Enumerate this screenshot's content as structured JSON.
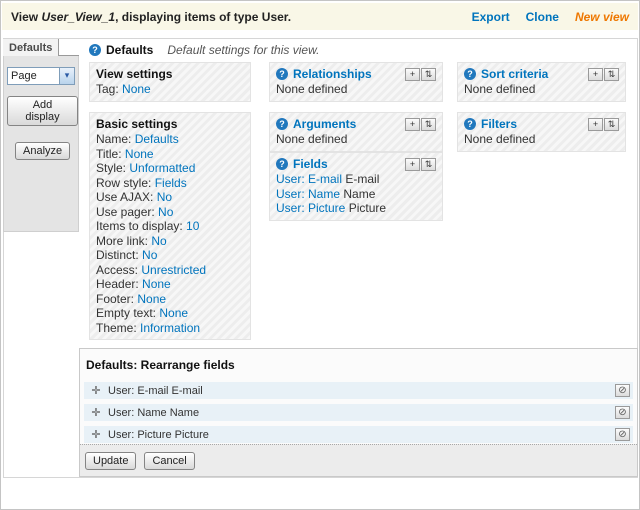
{
  "icons": {
    "help": "?",
    "add": "+",
    "rearrange": "⇅",
    "drag": "✛",
    "remove": "⊘",
    "select_arrow": "▾"
  },
  "header": {
    "title_prefix": "View ",
    "view_name": "User_View_1",
    "title_suffix": ", displaying items of type User.",
    "export": "Export",
    "clone": "Clone",
    "new_view": "New view"
  },
  "sidebar": {
    "tab": "Defaults",
    "display_type": "Page",
    "add_display_button": "Add display",
    "analyze_button": "Analyze"
  },
  "overview": {
    "title": "Defaults",
    "description": "Default settings for this view."
  },
  "view_settings": {
    "title": "View settings",
    "tag_label": "Tag:",
    "tag_value": "None"
  },
  "basic_settings": {
    "title": "Basic settings",
    "items": [
      {
        "label": "Name:",
        "value": "Defaults"
      },
      {
        "label": "Title:",
        "value": "None"
      },
      {
        "label": "Style:",
        "value": "Unformatted"
      },
      {
        "label": "Row style:",
        "value": "Fields"
      },
      {
        "label": "Use AJAX:",
        "value": "No"
      },
      {
        "label": "Use pager:",
        "value": "No"
      },
      {
        "label": "Items to display:",
        "value": "10"
      },
      {
        "label": "More link:",
        "value": "No"
      },
      {
        "label": "Distinct:",
        "value": "No"
      },
      {
        "label": "Access:",
        "value": "Unrestricted"
      },
      {
        "label": "Header:",
        "value": "None"
      },
      {
        "label": "Footer:",
        "value": "None"
      },
      {
        "label": "Empty text:",
        "value": "None"
      },
      {
        "label": "Theme:",
        "value": "Information"
      }
    ]
  },
  "relationships": {
    "title": "Relationships",
    "empty": "None defined"
  },
  "sort_criteria": {
    "title": "Sort criteria",
    "empty": "None defined"
  },
  "arguments": {
    "title": "Arguments",
    "empty": "None defined"
  },
  "filters": {
    "title": "Filters",
    "empty": "None defined"
  },
  "fields": {
    "title": "Fields",
    "items": [
      {
        "link": "User: E-mail",
        "suffix": "E-mail"
      },
      {
        "link": "User: Name",
        "suffix": "Name"
      },
      {
        "link": "User: Picture",
        "suffix": "Picture"
      }
    ]
  },
  "rearrange": {
    "title": "Defaults: Rearrange fields",
    "rows": [
      "User: E-mail E-mail",
      "User: Name Name",
      "User: Picture Picture"
    ],
    "update_button": "Update",
    "cancel_button": "Cancel"
  },
  "colors": {
    "link_blue": "#0074bd",
    "new_view_orange": "#ee7700",
    "header_cream": "#f9f7e7",
    "row_blue": "#e8f1f7"
  }
}
